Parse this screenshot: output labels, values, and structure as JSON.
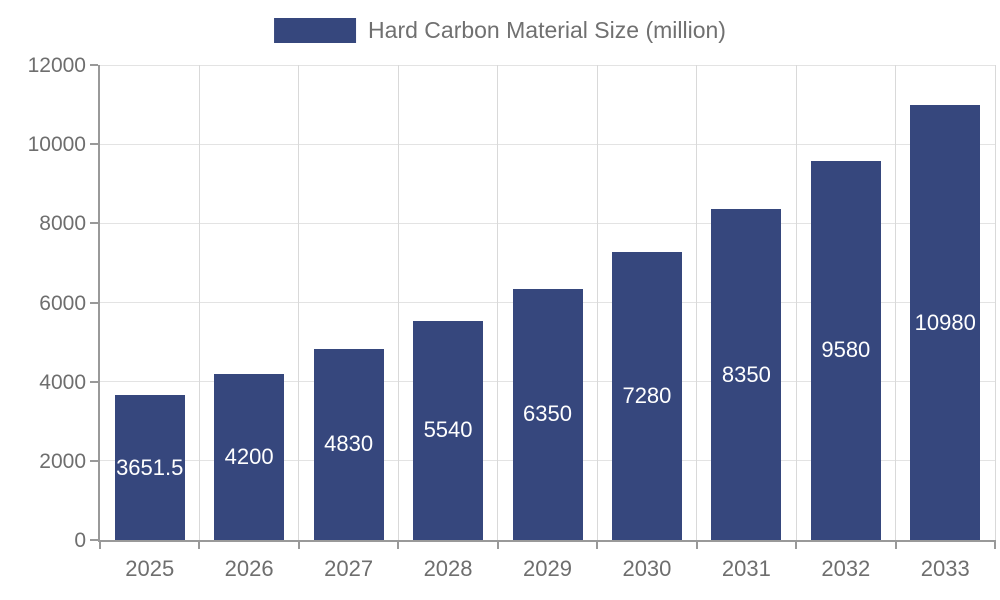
{
  "legend": {
    "label": "Hard Carbon Material Size (million)"
  },
  "chart_data": {
    "type": "bar",
    "title": "Hard Carbon Material Size (million)",
    "series_name": "Hard Carbon Material Size (million)",
    "categories": [
      "2025",
      "2026",
      "2027",
      "2028",
      "2029",
      "2030",
      "2031",
      "2032",
      "2033"
    ],
    "values": [
      3651.5,
      4200,
      4830,
      5540,
      6350,
      7280,
      8350,
      9580,
      10980
    ],
    "value_labels": [
      "3651.5",
      "4200",
      "4830",
      "5540",
      "6350",
      "7280",
      "8350",
      "9580",
      "10980"
    ],
    "xlabel": "",
    "ylabel": "",
    "ylim": [
      0,
      12000
    ],
    "yticks": [
      0,
      2000,
      4000,
      6000,
      8000,
      10000,
      12000
    ],
    "grid": "horizontal and vertical gridlines on",
    "legend_position": "top-center",
    "colors": {
      "bar": "#36477D",
      "bar_value_text": "#FFFFFF",
      "axis_text": "#6E6E6E",
      "legend_text": "#707070",
      "axis_line": "#999999",
      "h_gridline": "#E3E3E3",
      "v_gridline": "#D9D9D9",
      "background": "#FFFFFF"
    }
  }
}
